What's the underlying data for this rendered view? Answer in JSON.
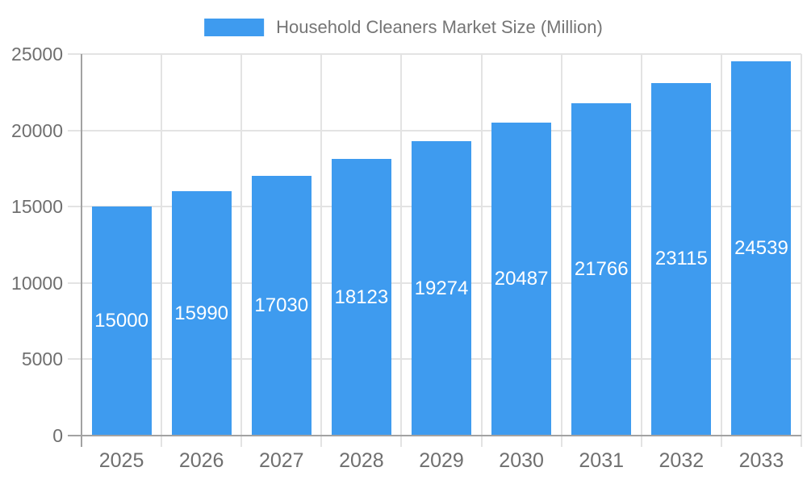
{
  "chart_data": {
    "type": "bar",
    "title": "Household Cleaners Market Size (Million)",
    "legend_entries": [
      "Household Cleaners Market Size (Million)"
    ],
    "legend_position": "top-center",
    "categories": [
      "2025",
      "2026",
      "2027",
      "2028",
      "2029",
      "2030",
      "2031",
      "2032",
      "2033"
    ],
    "values": [
      15000,
      15990,
      17030,
      18123,
      19274,
      20487,
      21766,
      23115,
      24539
    ],
    "bar_labels": [
      "15000",
      "15990",
      "17030",
      "18123",
      "19274",
      "20487",
      "21766",
      "23115",
      "24539"
    ],
    "xlabel": "",
    "ylabel": "",
    "ylim": [
      0,
      25000
    ],
    "yticks": [
      0,
      5000,
      10000,
      15000,
      20000,
      25000
    ],
    "ytick_labels": [
      "0",
      "5000",
      "10000",
      "15000",
      "20000",
      "25000"
    ],
    "grid": true,
    "colors": {
      "bar": "#3E9BEF",
      "bar_value_label": "#FFFFFF",
      "gridline": "#E3E3E3",
      "axis_line": "#A2A2A2",
      "tick_label": "#6F6F6F",
      "legend_text": "#757575",
      "background": "#FFFFFF"
    }
  }
}
